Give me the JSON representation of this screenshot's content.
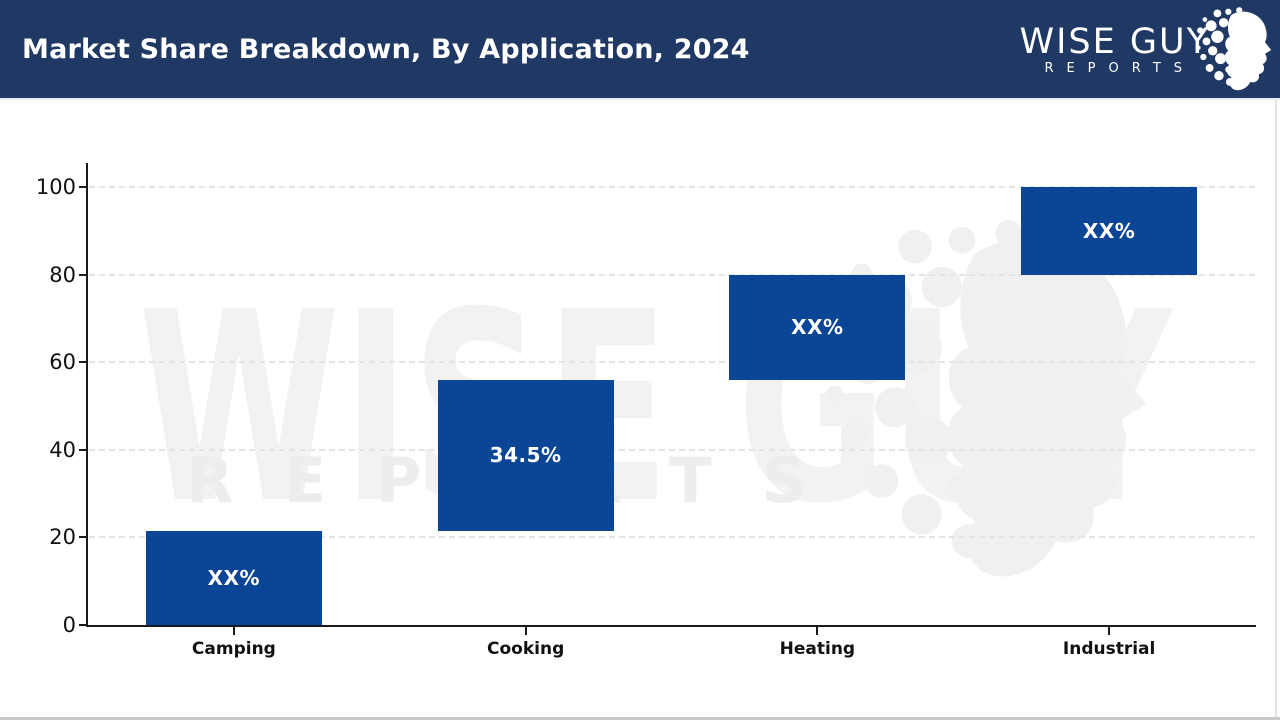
{
  "header": {
    "title": "Market Share Breakdown, By Application, 2024",
    "logo": {
      "line1": "WISE GUY",
      "line2": "REPORTS"
    }
  },
  "watermark": {
    "line1": "WISE GUY",
    "line2": "REPORTS"
  },
  "colors": {
    "header_bg": "#203864",
    "bar": "#0A4596",
    "grid": "#E4E4E4",
    "axis": "#1A1A1A",
    "bar_label": "#FFFFFF",
    "watermark": "#F2F2F2"
  },
  "chart_data": {
    "type": "bar",
    "variant": "waterfall",
    "title": "Market Share Breakdown, By Application, 2024",
    "categories": [
      "Camping",
      "Cooking",
      "Heating",
      "Industrial"
    ],
    "bars": [
      {
        "category": "Camping",
        "start": 0,
        "end": 21.5,
        "value_label": "XX%"
      },
      {
        "category": "Cooking",
        "start": 21.5,
        "end": 56,
        "value_label": "34.5%"
      },
      {
        "category": "Heating",
        "start": 56,
        "end": 80,
        "value_label": "XX%"
      },
      {
        "category": "Industrial",
        "start": 80,
        "end": 100,
        "value_label": "XX%"
      }
    ],
    "yticks": [
      0,
      20,
      40,
      60,
      80,
      100
    ],
    "ylim": [
      0,
      105.5
    ],
    "xlabel": "",
    "ylabel": "",
    "grid": "horizontal-dashed",
    "legend": false
  }
}
